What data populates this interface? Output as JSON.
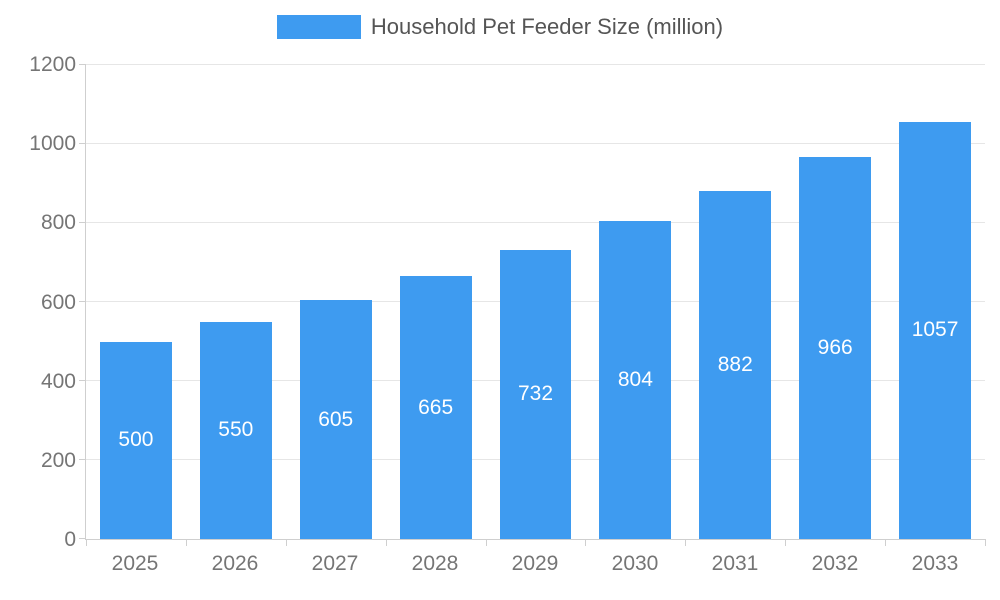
{
  "chart_data": {
    "type": "bar",
    "title": "Household Pet Feeder Size (million)",
    "categories": [
      "2025",
      "2026",
      "2027",
      "2028",
      "2029",
      "2030",
      "2031",
      "2032",
      "2033"
    ],
    "values": [
      500,
      550,
      605,
      665,
      732,
      804,
      882,
      966,
      1057
    ],
    "xlabel": "",
    "ylabel": "",
    "ylim": [
      0,
      1200
    ],
    "ytick_step": 200,
    "ytick_labels": [
      "0",
      "200",
      "400",
      "600",
      "800",
      "1000",
      "1200"
    ],
    "grid": true,
    "legend_position": "top",
    "bar_color": "#3e9bf0",
    "value_label_color": "#ffffff",
    "value_label_position": "inside-center"
  },
  "legend": {
    "label": "Household Pet Feeder Size (million)"
  }
}
